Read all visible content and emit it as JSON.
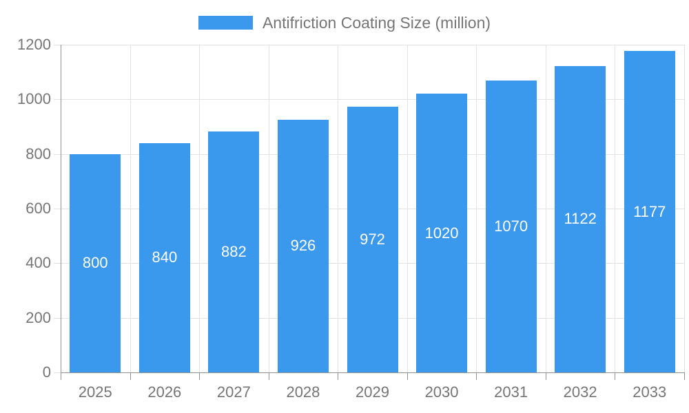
{
  "legend": {
    "label": "Antifriction Coating Size (million)"
  },
  "chart_data": {
    "type": "bar",
    "title": "Antifriction Coating Size (million)",
    "series_name": "Antifriction Coating Size (million)",
    "categories": [
      "2025",
      "2026",
      "2027",
      "2028",
      "2029",
      "2030",
      "2031",
      "2032",
      "2033"
    ],
    "values": [
      800,
      840,
      882,
      926,
      972,
      1020,
      1070,
      1122,
      1177
    ],
    "value_labels": [
      "800",
      "840",
      "882",
      "926",
      "972",
      "1020",
      "1070",
      "1122",
      "1177"
    ],
    "xlabel": "",
    "ylabel": "",
    "ylim": [
      0,
      1200
    ],
    "yticks": [
      0,
      200,
      400,
      600,
      800,
      1000,
      1200
    ],
    "grid": true,
    "legend_position": "top-center",
    "value_label_position": "inside-middle"
  },
  "colors": {
    "bar": "#3A99EC",
    "grid": "#e3e3e3",
    "axis": "#909090",
    "tick_text": "#757575",
    "legend_text": "#757575",
    "value_label": "#ffffff",
    "background": "#ffffff"
  }
}
